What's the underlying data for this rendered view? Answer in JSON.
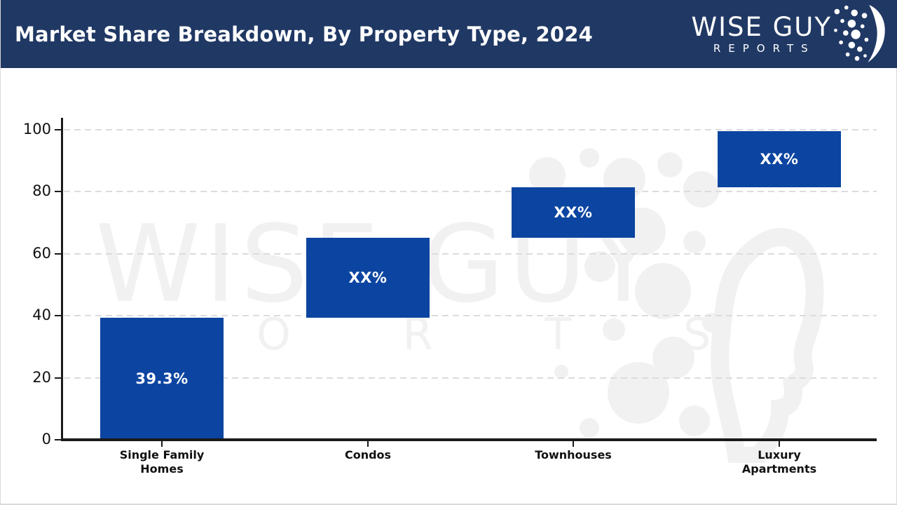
{
  "header": {
    "title": "Market Share Breakdown, By Property Type, 2024",
    "logo": {
      "line1": "WISE GUY",
      "line2": "REPORTS",
      "icon": "dotted-face-profile"
    }
  },
  "watermark": {
    "line1": "WISE GUY",
    "line2": "REPORTS",
    "icon": "dotted-face-profile"
  },
  "colors": {
    "header_bg": "#203864",
    "bar_fill": "#0c45a1",
    "bar_label_text": "#ffffff",
    "axis": "#1a1a1a",
    "gridline": "#dcdcdc",
    "watermark": "#f1f1f1"
  },
  "chart_data": {
    "type": "bar",
    "subtype": "waterfall-floating-bars",
    "title": "Market Share Breakdown, By Property Type, 2024",
    "xlabel": "",
    "ylabel": "",
    "ylim": [
      0,
      105
    ],
    "yticks": [
      "0",
      "20",
      "40",
      "60",
      "80",
      "100"
    ],
    "ytick_values": [
      0,
      20,
      40,
      60,
      80,
      100
    ],
    "grid": "horizontal dashed",
    "legend": "none",
    "categories": [
      "Single Family Homes",
      "Condos",
      "Townhouses",
      "Luxury Apartments"
    ],
    "bars": [
      {
        "category": "Single Family Homes",
        "start": 0,
        "end": 39.3,
        "label": "39.3%"
      },
      {
        "category": "Condos",
        "start": 39.3,
        "end": 65.2,
        "label": "XX%"
      },
      {
        "category": "Townhouses",
        "start": 65.2,
        "end": 81.4,
        "label": "XX%"
      },
      {
        "category": "Luxury Apartments",
        "start": 81.4,
        "end": 99.5,
        "label": "XX%"
      }
    ]
  }
}
